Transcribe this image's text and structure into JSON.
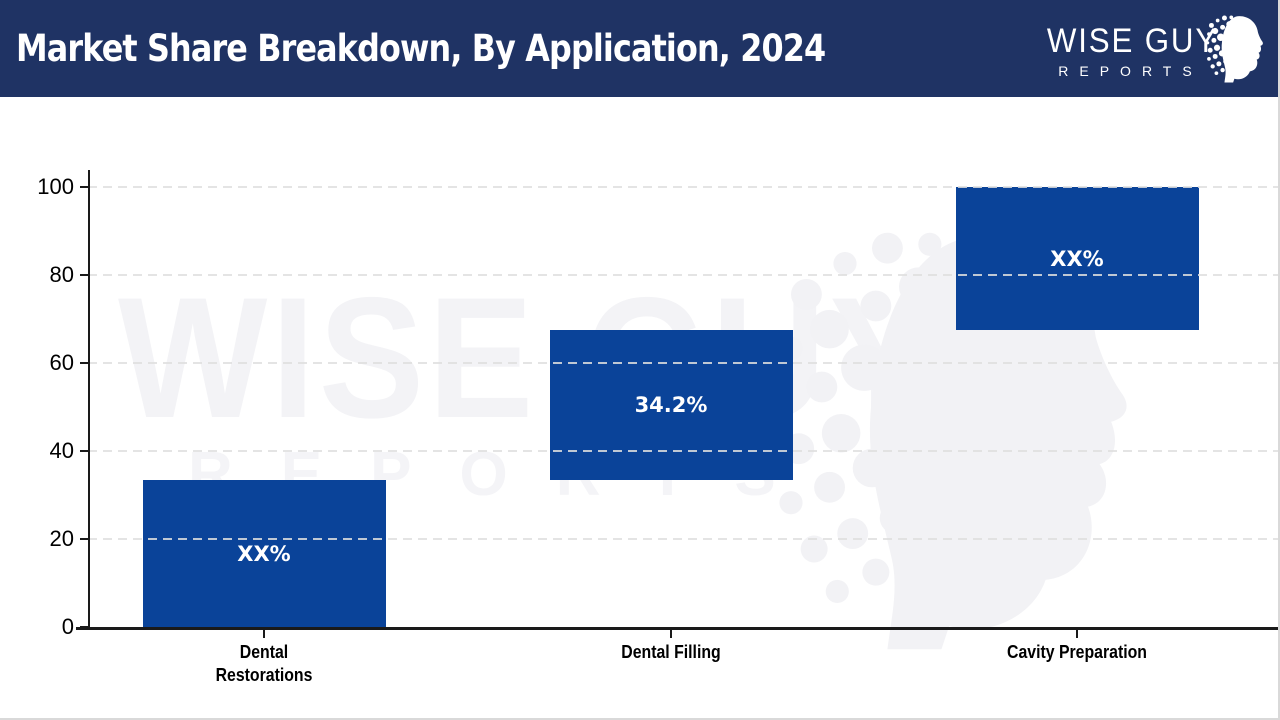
{
  "header": {
    "title": "Market Share Breakdown, By Application, 2024",
    "background_color": "#1f3364",
    "logo": {
      "wordmark": "WISE GUY",
      "reports": "REPORTS"
    }
  },
  "watermark": {
    "wordmark": "WISE GUY",
    "reports": "REPORTS"
  },
  "chart_data": {
    "type": "bar",
    "subtype": "waterfall",
    "title": "Market Share Breakdown, By Application, 2024",
    "categories": [
      "Dental\nRestorations",
      "Dental Filling",
      "Cavity Preparation"
    ],
    "segments": [
      {
        "category": "Dental Restorations",
        "base": 0,
        "top": 33.3,
        "height_value": 33.3,
        "label": "XX%"
      },
      {
        "category": "Dental Filling",
        "base": 33.3,
        "top": 67.5,
        "height_value": 34.2,
        "label": "34.2%"
      },
      {
        "category": "Cavity Preparation",
        "base": 67.5,
        "top": 100,
        "height_value": 32.5,
        "label": "XX%"
      }
    ],
    "yticks": [
      0,
      20,
      40,
      60,
      80,
      100
    ],
    "ylim": [
      0,
      104
    ],
    "xlabel": "",
    "ylabel": "",
    "grid": true,
    "gridline_style": "dashed",
    "legend": "none",
    "bar_color": "#0a4399",
    "bar_label_color": "#ffffff",
    "axis_color": "#1a1a1a",
    "gridline_color": "#e0e0e0"
  }
}
